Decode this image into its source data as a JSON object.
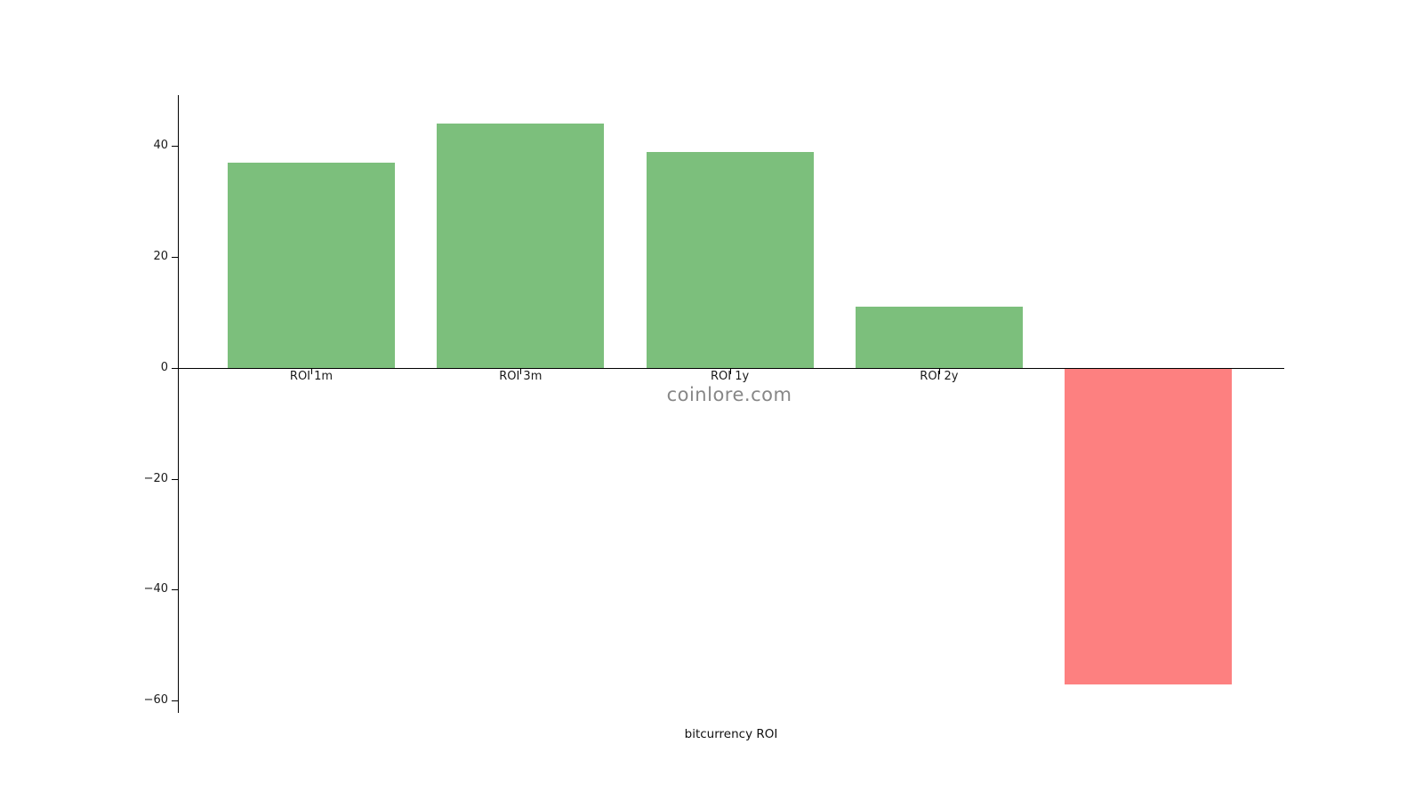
{
  "chart_data": {
    "type": "bar",
    "categories": [
      "ROI 1m",
      "ROI 3m",
      "ROI 1y",
      "ROI 2y",
      ""
    ],
    "values": [
      37,
      44,
      39,
      11,
      -57
    ],
    "bar_colors": [
      "#7cbf7c",
      "#7cbf7c",
      "#7cbf7c",
      "#7cbf7c",
      "#fd8080"
    ],
    "positive_color": "#7cbf7c",
    "negative_color": "#fd8080",
    "title": "",
    "xlabel": "bitcurrency ROI",
    "ylabel": "",
    "yticks": [
      40,
      20,
      0,
      -20,
      -40,
      -60
    ],
    "ylim": [
      -62.2,
      49.2
    ],
    "grid": false,
    "legend_position": "none",
    "axis_color": "#000000",
    "tick_label_color": "#1a1a1a"
  },
  "watermark": {
    "text": "coinlore.com",
    "color": "#878787"
  }
}
